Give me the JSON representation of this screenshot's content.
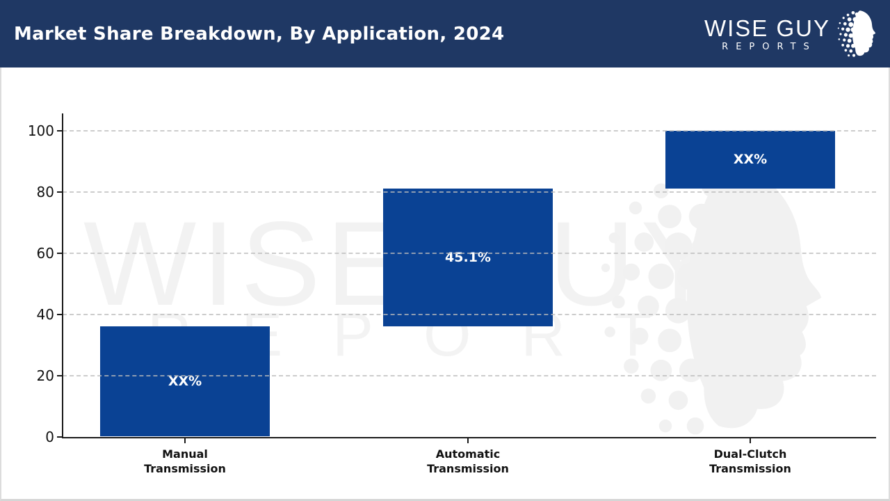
{
  "colors": {
    "header_bg": "#1f3864",
    "bar_color": "#0a4294",
    "grid_color": "#bbbbbb",
    "watermark_color": "#f2f2f2",
    "title_color": "#ffffff"
  },
  "header": {
    "logo": {
      "primary": "WISE GUY",
      "secondary": "REPORTS"
    }
  },
  "watermark": {
    "primary": "WISE GUY",
    "secondary": "REPORTS"
  },
  "chart_data": {
    "type": "bar",
    "variant": "waterfall-floating-segments",
    "title": "Market Share Breakdown, By Application, 2024",
    "categories": [
      "Manual\nTransmission",
      "Automatic\nTransmission",
      "Dual-Clutch\nTransmission"
    ],
    "segments": [
      {
        "category": "Manual Transmission",
        "start": 0,
        "end": 36,
        "label": "XX%"
      },
      {
        "category": "Automatic Transmission",
        "start": 36,
        "end": 81.1,
        "label": "45.1%",
        "value": 45.1
      },
      {
        "category": "Dual-Clutch Transmission",
        "start": 81.1,
        "end": 100,
        "label": "XX%"
      }
    ],
    "ylabel": "",
    "xlabel": "",
    "yticks": [
      0,
      20,
      40,
      60,
      80,
      100
    ],
    "ylim": [
      0,
      105
    ],
    "grid": "horizontal-dashed",
    "legend": "none"
  }
}
